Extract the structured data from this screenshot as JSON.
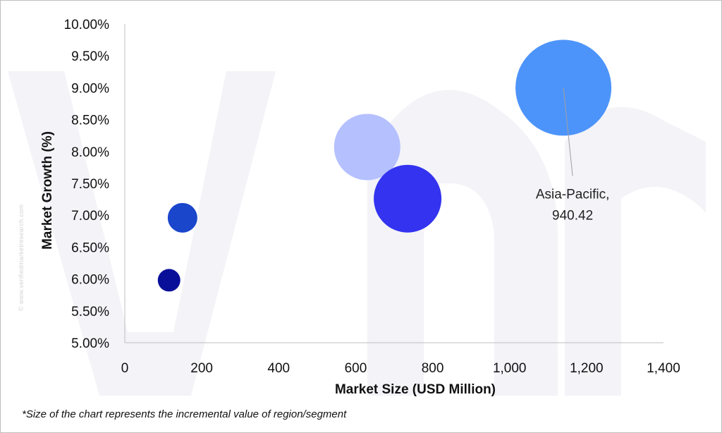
{
  "watermark": "© www.verifiedmarketresearch.com",
  "footnote": "*Size of the chart represents the incremental value of region/segment",
  "chart_data": {
    "type": "scatter",
    "title": "",
    "xlabel": "Market Size (USD Million)",
    "ylabel": "Market Growth (%)",
    "xlim": [
      0,
      1400
    ],
    "ylim": [
      5,
      10
    ],
    "x_ticks": [
      0,
      200,
      400,
      600,
      800,
      1000,
      1200,
      1400
    ],
    "x_tick_labels": [
      "0",
      "200",
      "400",
      "600",
      "800",
      "1,000",
      "1,200",
      "1,400"
    ],
    "y_ticks": [
      5,
      5.5,
      6,
      6.5,
      7,
      7.5,
      8,
      8.5,
      9,
      9.5,
      10
    ],
    "y_tick_labels": [
      "5.00%",
      "5.50%",
      "6.00%",
      "6.50%",
      "7.00%",
      "7.50%",
      "8.00%",
      "8.50%",
      "9.00%",
      "9.50%",
      "10.00%"
    ],
    "grid": false,
    "points": [
      {
        "x": 115,
        "y": 5.98,
        "size": 16,
        "color": "#0a0f99"
      },
      {
        "x": 150,
        "y": 6.96,
        "size": 21,
        "color": "#1a46cc"
      },
      {
        "x": 630,
        "y": 8.07,
        "size": 47,
        "color": "#b5c0ff"
      },
      {
        "x": 735,
        "y": 7.26,
        "size": 48,
        "color": "#3333f0",
        "label": "",
        "label_value": ""
      },
      {
        "x": 1140,
        "y": 9.0,
        "size": 68,
        "color": "#4d94fa",
        "label": "Asia-Pacific,",
        "label_value": "940.42"
      }
    ]
  }
}
